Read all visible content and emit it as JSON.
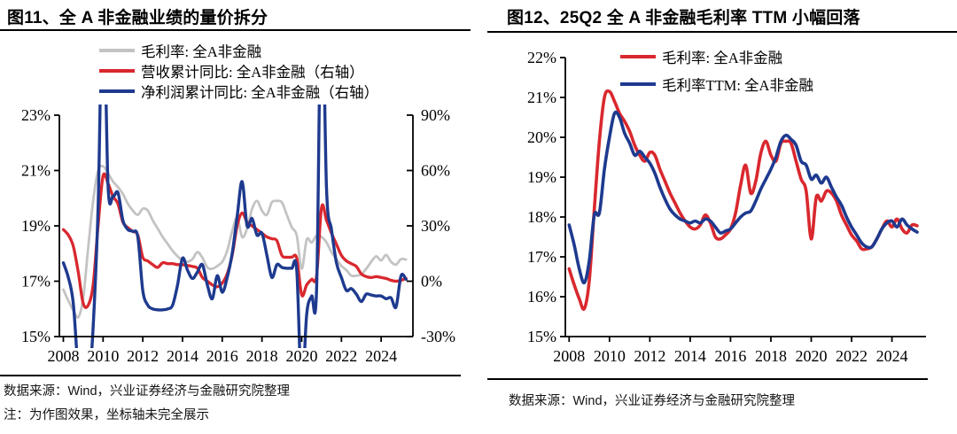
{
  "figure_left": {
    "title": "图11、全 A 非金融业绩的量价拆分",
    "source": "数据来源：Wind，兴业证券经济与金融研究院整理",
    "note": "注：为作图效果，坐标轴未完全展示"
  },
  "figure_right": {
    "title": "图12、25Q2 全 A 非金融毛利率 TTM 小幅回落",
    "source": "数据来源：Wind，兴业证券经济与金融研究院整理"
  },
  "chart_data": [
    {
      "type": "line",
      "title": "全A非金融业绩的量价拆分",
      "x_start": 2008,
      "x_step_years": 0.25,
      "x_tick_labels": [
        "2008",
        "2010",
        "2012",
        "2014",
        "2016",
        "2018",
        "2020",
        "2022",
        "2024"
      ],
      "y_left": {
        "ticks": [
          "23%",
          "21%",
          "19%",
          "17%",
          "15%"
        ],
        "range": [
          15,
          23
        ]
      },
      "y_right": {
        "ticks": [
          "90%",
          "60%",
          "30%",
          "0%",
          "-30%"
        ],
        "range": [
          -30,
          90
        ]
      },
      "grid": false,
      "legend_position": "top-left",
      "series": [
        {
          "name": "毛利率: 全A非金融",
          "axis": "left",
          "color": "#c3c3c3",
          "values": [
            16.7,
            16.3,
            15.95,
            15.7,
            16.4,
            18.2,
            19.9,
            21.0,
            21.15,
            20.9,
            20.6,
            20.4,
            20.15,
            19.8,
            19.55,
            19.4,
            19.62,
            19.55,
            19.2,
            18.9,
            18.6,
            18.35,
            18.1,
            17.9,
            17.75,
            17.7,
            17.8,
            18.05,
            17.85,
            17.5,
            17.45,
            17.55,
            17.7,
            18.1,
            18.8,
            19.3,
            18.6,
            18.9,
            19.6,
            19.9,
            19.55,
            19.4,
            19.85,
            19.9,
            19.85,
            19.4,
            18.95,
            18.65,
            17.45,
            18.5,
            18.4,
            18.65,
            18.6,
            18.4,
            18.05,
            17.8,
            17.55,
            17.4,
            17.2,
            17.2,
            17.25,
            17.45,
            17.7,
            17.9,
            17.75,
            17.95,
            17.7,
            17.6,
            17.8,
            17.78
          ]
        },
        {
          "name": "营收累计同比: 全A非金融（右轴）",
          "axis": "right",
          "color": "#d9282e",
          "values": [
            28,
            25,
            19,
            5,
            -12,
            -13,
            -2,
            30,
            57,
            53,
            46,
            42,
            32,
            29,
            27,
            25,
            13,
            11,
            9,
            7.5,
            10,
            9.5,
            9.5,
            9,
            9,
            8.5,
            8,
            7,
            2,
            0,
            -2,
            -3,
            -1,
            4,
            14,
            30,
            37,
            32,
            30,
            28,
            26,
            24,
            23,
            22,
            14,
            13,
            13,
            12.5,
            -7.5,
            -2,
            1,
            3,
            40,
            33,
            26,
            20,
            14,
            11,
            9.5,
            8,
            4,
            2.5,
            2,
            2.5,
            2,
            1.5,
            0.5,
            0,
            0.5,
            1.5
          ]
        },
        {
          "name": "净利润累计同比: 全A非金融（右轴）",
          "axis": "right",
          "color": "#1e3a8f",
          "values": [
            10,
            2,
            -12,
            -50,
            -80,
            -62,
            -25,
            40,
            160,
            52,
            46,
            48,
            33,
            28,
            27,
            24,
            -5,
            -13,
            -15,
            -15.5,
            -15.5,
            -15,
            -13,
            -2,
            12.5,
            6,
            1.5,
            5,
            9,
            -2,
            -9.5,
            3,
            -6,
            2,
            15,
            35,
            54,
            30,
            34,
            25,
            26,
            14,
            2,
            9,
            7.5,
            7,
            7,
            6,
            -60,
            -18,
            -8,
            -4,
            165,
            50,
            28,
            10,
            2,
            -5,
            -4,
            -7,
            -11,
            -7,
            -7.5,
            -8,
            -8,
            -9.5,
            -9,
            -14,
            3,
            1
          ]
        }
      ],
      "note": "为作图效果，坐标轴未完全展示"
    },
    {
      "type": "line",
      "title": "25Q2 全 A 非金融毛利率 TTM 小幅回落",
      "x_start": 2008,
      "x_step_years": 0.25,
      "x_tick_labels": [
        "2008",
        "2010",
        "2012",
        "2014",
        "2016",
        "2018",
        "2020",
        "2022",
        "2024"
      ],
      "y_left": {
        "ticks": [
          "22%",
          "21%",
          "20%",
          "19%",
          "18%",
          "17%",
          "16%",
          "15%"
        ],
        "range": [
          15,
          22
        ]
      },
      "grid": false,
      "legend_position": "top-center",
      "series": [
        {
          "name": "毛利率: 全A非金融",
          "axis": "left",
          "color": "#d9282e",
          "values": [
            16.7,
            16.3,
            15.95,
            15.7,
            16.4,
            18.2,
            19.9,
            21.0,
            21.15,
            20.9,
            20.6,
            20.4,
            20.15,
            19.8,
            19.55,
            19.4,
            19.62,
            19.55,
            19.2,
            18.9,
            18.6,
            18.35,
            18.1,
            17.9,
            17.75,
            17.7,
            17.8,
            18.05,
            17.85,
            17.5,
            17.45,
            17.55,
            17.7,
            18.1,
            18.8,
            19.3,
            18.6,
            18.9,
            19.6,
            19.9,
            19.55,
            19.4,
            19.85,
            19.9,
            19.85,
            19.4,
            18.95,
            18.65,
            17.45,
            18.5,
            18.4,
            18.65,
            18.6,
            18.4,
            18.05,
            17.8,
            17.55,
            17.4,
            17.2,
            17.2,
            17.25,
            17.45,
            17.7,
            17.9,
            17.75,
            17.95,
            17.7,
            17.6,
            17.8,
            17.78
          ]
        },
        {
          "name": "毛利率TTM: 全A非金融",
          "axis": "left",
          "color": "#1e3a8f",
          "values": [
            17.8,
            17.3,
            16.7,
            16.35,
            16.9,
            18.05,
            18.1,
            19.2,
            20.0,
            20.6,
            20.5,
            20.1,
            19.85,
            19.55,
            19.65,
            19.5,
            19.35,
            19.1,
            18.75,
            18.45,
            18.2,
            18.05,
            17.95,
            17.9,
            17.85,
            17.9,
            17.85,
            17.95,
            17.9,
            17.75,
            17.6,
            17.65,
            17.7,
            17.85,
            18.0,
            18.1,
            18.15,
            18.4,
            18.7,
            18.95,
            19.2,
            19.5,
            19.9,
            20.05,
            19.95,
            19.8,
            19.4,
            19.3,
            18.95,
            19.05,
            18.85,
            19.0,
            18.75,
            18.5,
            18.3,
            18.0,
            17.75,
            17.55,
            17.35,
            17.25,
            17.25,
            17.45,
            17.7,
            17.85,
            17.9,
            17.75,
            17.95,
            17.8,
            17.7,
            17.62
          ]
        }
      ]
    }
  ]
}
